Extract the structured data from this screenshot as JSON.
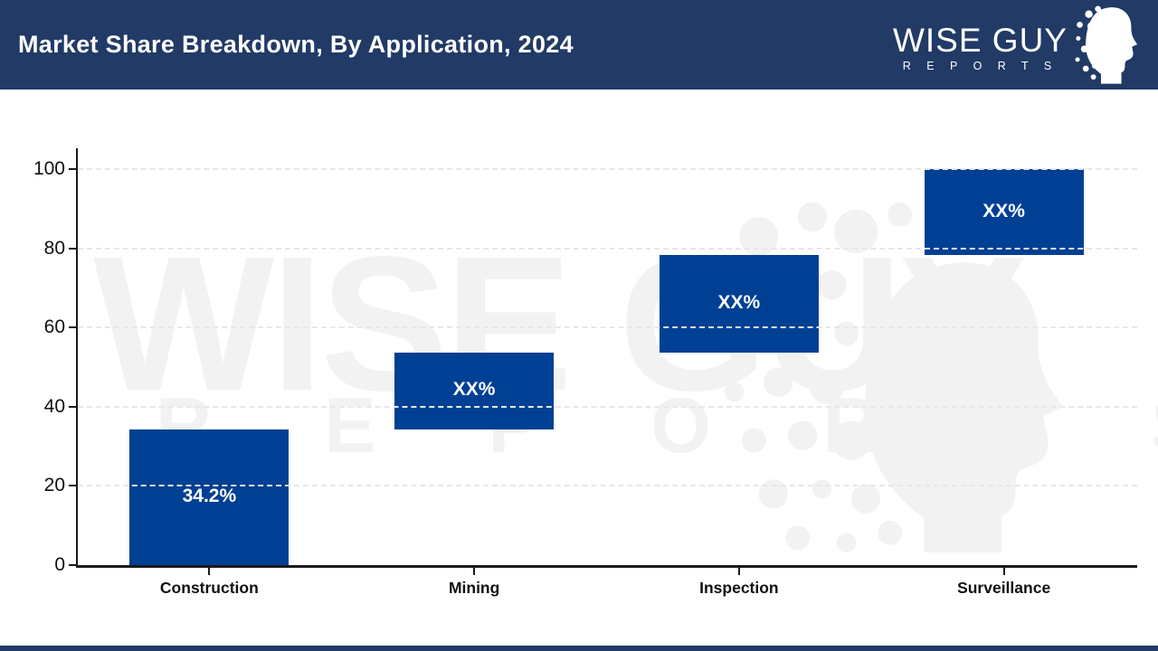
{
  "header": {
    "title": "Market Share Breakdown, By Application, 2024",
    "logo": {
      "name": "WISE GUY",
      "subtitle": "R E P O R T S"
    }
  },
  "watermark": {
    "line1": "WISE GUY",
    "line2": "R E P O R T S"
  },
  "colors": {
    "header_bg": "#213a66",
    "footer_bg": "#213a66",
    "bar": "#004094",
    "axis": "#1a1a1a",
    "grid": "#e7e7e7",
    "watermark": "#f2f2f2",
    "tick_text": "#111111"
  },
  "chart_data": {
    "type": "bar",
    "variant": "waterfall",
    "title": "Market Share Breakdown, By Application, 2024",
    "categories": [
      "Construction",
      "Mining",
      "Inspection",
      "Surveillance"
    ],
    "segments": [
      {
        "category": "Construction",
        "start": 0,
        "end": 34.2,
        "label": "34.2%"
      },
      {
        "category": "Mining",
        "start": 34.2,
        "end": 53.7,
        "label": "XX%"
      },
      {
        "category": "Inspection",
        "start": 53.7,
        "end": 78.3,
        "label": "XX%"
      },
      {
        "category": "Surveillance",
        "start": 78.3,
        "end": 100,
        "label": "XX%"
      }
    ],
    "ylim": [
      0,
      100
    ],
    "yticks": [
      0,
      20,
      40,
      60,
      80,
      100
    ],
    "xlabel": "",
    "ylabel": "",
    "grid": "horizontal-dashed",
    "legend": "none",
    "bar_color": "#004094",
    "bar_label_color": "#ffffff"
  }
}
